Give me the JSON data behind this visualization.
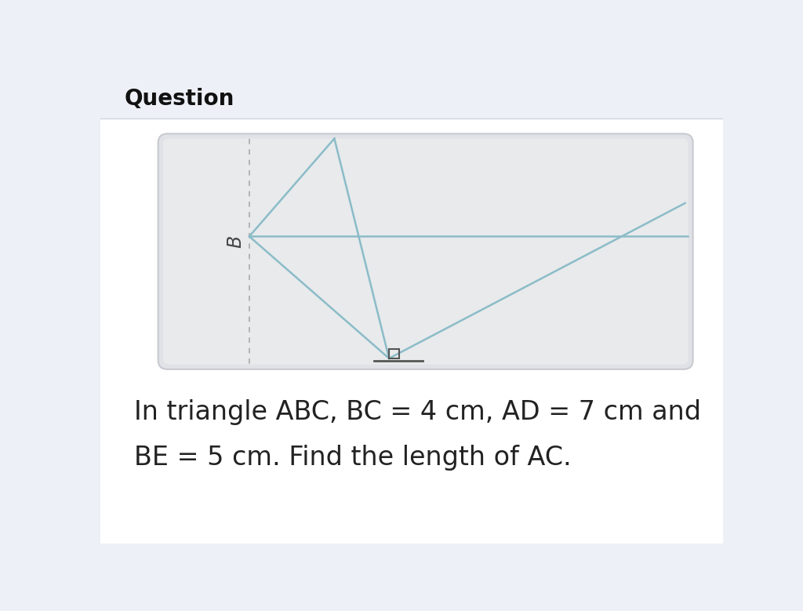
{
  "title": "Question",
  "title_fontsize": 20,
  "title_fontweight": "bold",
  "body_text_line1": "In triangle ABC, BC = 4 cm, AD = 7 cm and",
  "body_text_line2": "BE = 5 cm. Find the length of AC.",
  "body_fontsize": 24,
  "page_bg_color": "#eef0f7",
  "card_bg_color": "#ffffff",
  "header_bg_color": "#eef0f7",
  "image_box_bg": "#e0e2e8",
  "image_inner_bg": "#e8eaec",
  "triangle_color": "#8bbcc8",
  "triangle_linewidth": 1.8,
  "dashed_line_color": "#aaaaaa",
  "label_color": "#444444",
  "right_angle_color": "#555555",
  "bottom_line_color": "#555555"
}
